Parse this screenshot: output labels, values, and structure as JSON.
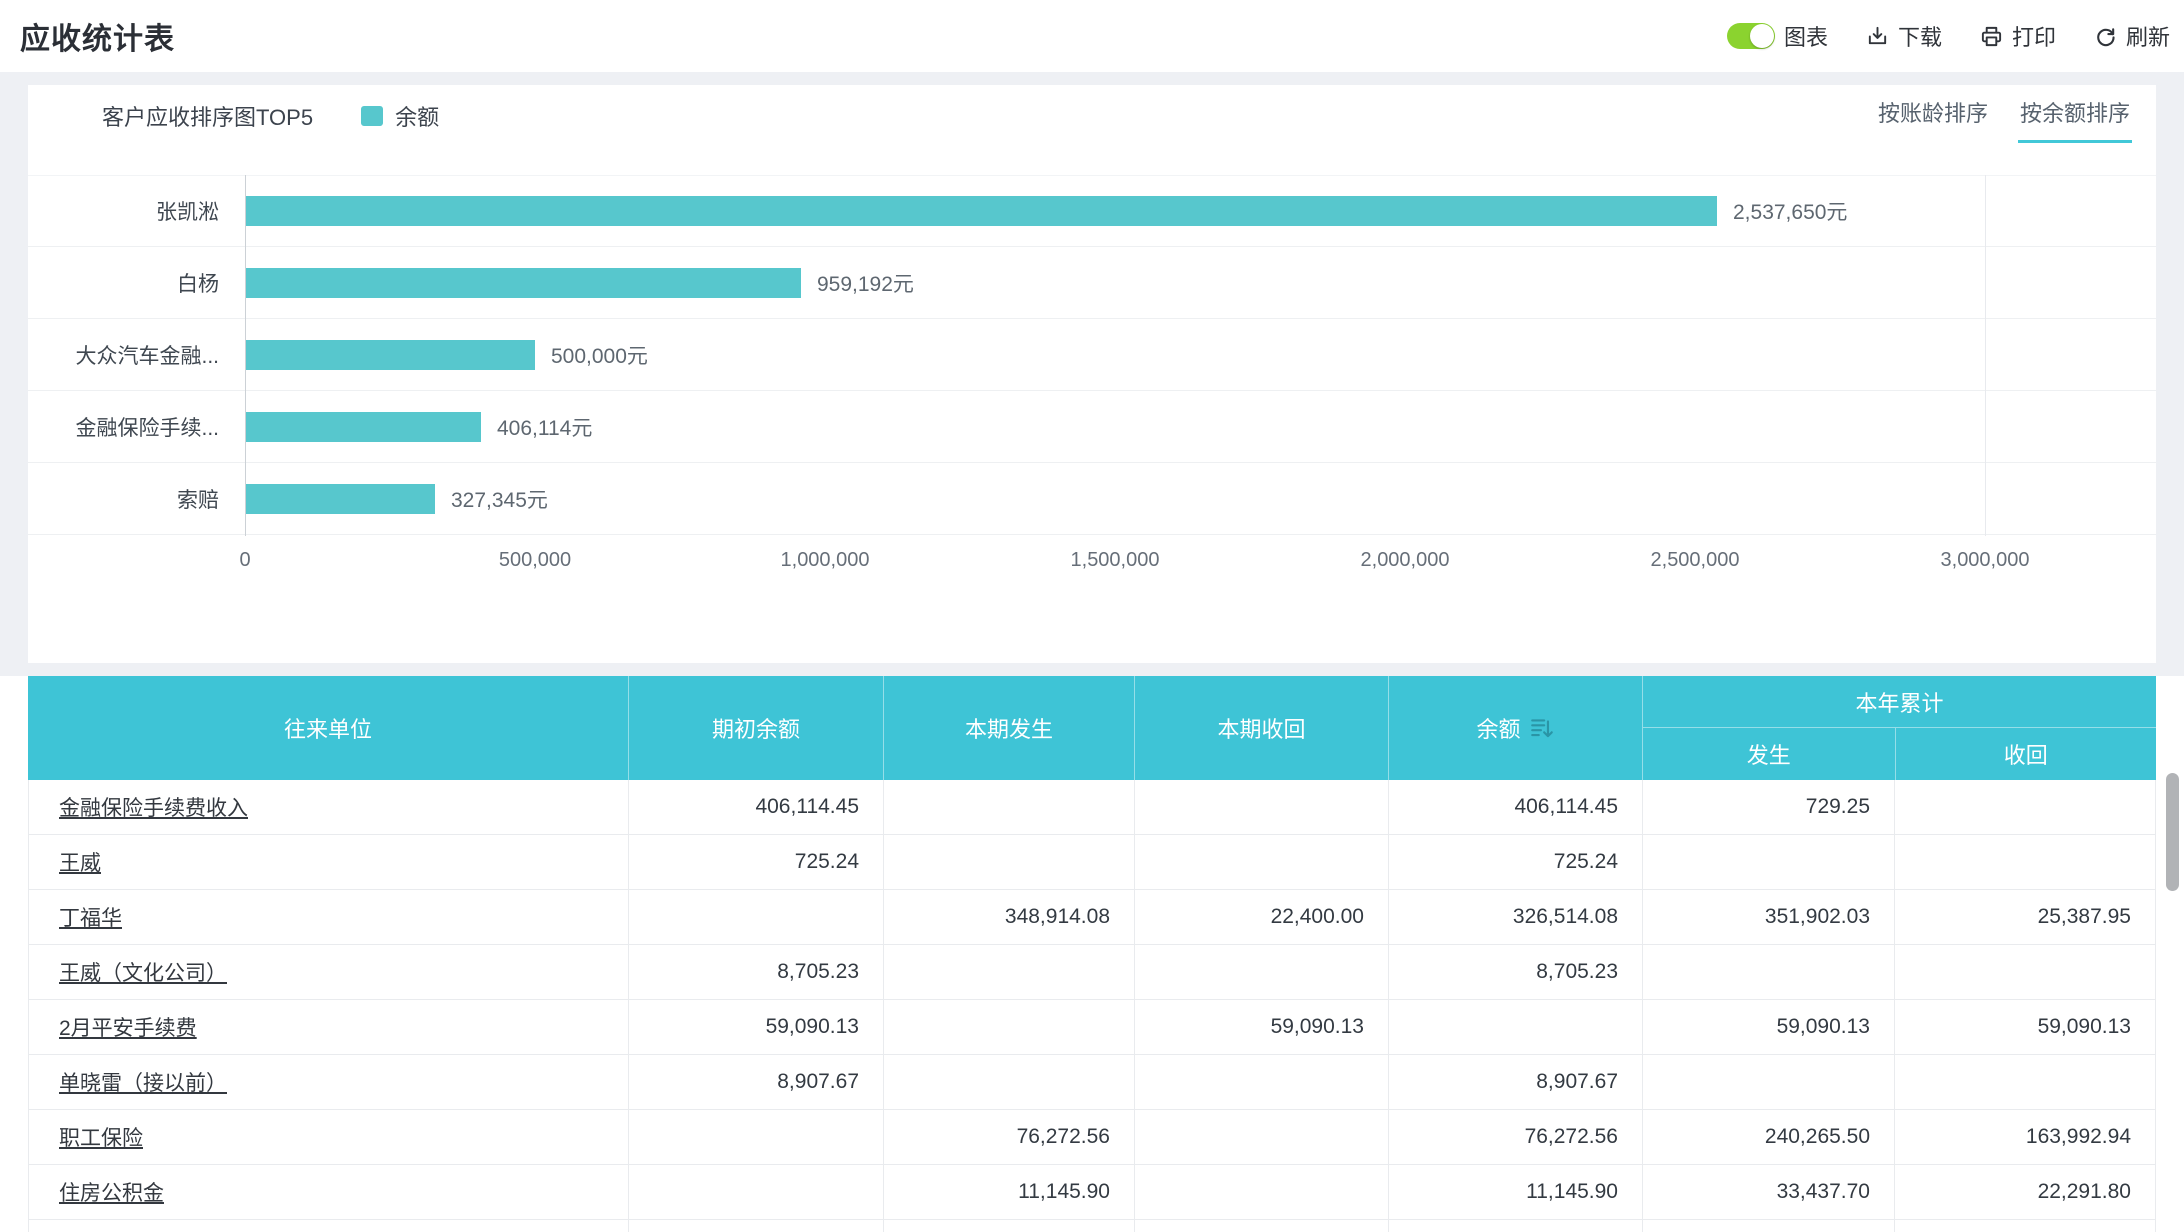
{
  "page": {
    "title": "应收统计表"
  },
  "toolbar": {
    "toggle_label": "图表",
    "download": "下载",
    "print": "打印",
    "refresh": "刷新",
    "toggle_state": "on",
    "toggle_color": "#8bd32f"
  },
  "chart": {
    "title": "客户应收排序图TOP5",
    "legend_label": "余额",
    "tabs": [
      {
        "label": "按账龄排序",
        "active": false
      },
      {
        "label": "按余额排序",
        "active": true
      }
    ]
  },
  "chart_data": {
    "type": "bar",
    "orientation": "horizontal",
    "title": "客户应收排序图TOP5",
    "legend": [
      "余额"
    ],
    "legend_position": "top",
    "categories": [
      "张凯淞",
      "白杨",
      "大众汽车金融...",
      "金融保险手续...",
      "索赔"
    ],
    "values": [
      2537650,
      959192,
      500000,
      406114,
      327345
    ],
    "value_labels": [
      "2,537,650元",
      "959,192元",
      "500,000元",
      "406,114元",
      "327,345元"
    ],
    "x_ticks": [
      "0",
      "500,000",
      "1,000,000",
      "1,500,000",
      "2,000,000",
      "2,500,000",
      "3,000,000"
    ],
    "xlim": [
      0,
      3000000
    ],
    "grid": "row-separators",
    "bar_color": "#57c7cd"
  },
  "table": {
    "headers": {
      "unit": "往来单位",
      "opening_balance": "期初余额",
      "current_incurred": "本期发生",
      "current_received": "本期收回",
      "balance": "余额",
      "ytd_group": "本年累计",
      "ytd_incurred": "发生",
      "ytd_received": "收回"
    },
    "sorted_by": "余额",
    "rows": [
      [
        "金融保险手续费收入",
        "406,114.45",
        "",
        "",
        "406,114.45",
        "729.25",
        ""
      ],
      [
        "王威",
        "725.24",
        "",
        "",
        "725.24",
        "",
        ""
      ],
      [
        "丁福华",
        "",
        "348,914.08",
        "22,400.00",
        "326,514.08",
        "351,902.03",
        "25,387.95"
      ],
      [
        "王威（文化公司）",
        "8,705.23",
        "",
        "",
        "8,705.23",
        "",
        ""
      ],
      [
        "2月平安手续费",
        "59,090.13",
        "",
        "59,090.13",
        "",
        "59,090.13",
        "59,090.13"
      ],
      [
        "单晓雷（接以前）",
        "8,907.67",
        "",
        "",
        "8,907.67",
        "",
        ""
      ],
      [
        "职工保险",
        "",
        "76,272.56",
        "",
        "76,272.56",
        "240,265.50",
        "163,992.94"
      ],
      [
        "住房公积金",
        "",
        "11,145.90",
        "",
        "11,145.90",
        "33,437.70",
        "22,291.80"
      ]
    ]
  },
  "colors": {
    "accent_teal": "#3ec4d6",
    "bar_teal": "#57c7cd",
    "toggle_green": "#8bd32f",
    "page_background": "#eef0f4",
    "row_border": "#e9ebee"
  }
}
